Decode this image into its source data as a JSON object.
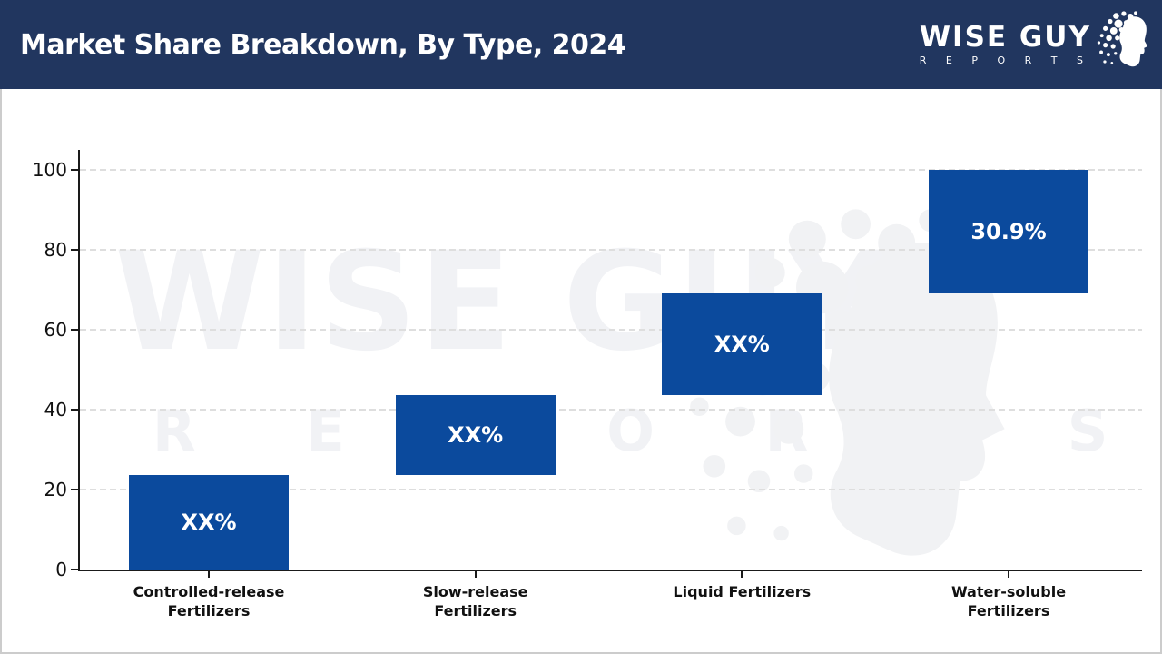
{
  "header": {
    "title": "Market Share Breakdown, By Type, 2024",
    "logo": {
      "line1": "WISE GUY",
      "line2": "R E P O R T S",
      "face_icon": "wiseguy-face"
    }
  },
  "watermark": {
    "line1": "WISE GUY",
    "line2": "R E P O R T S"
  },
  "colors": {
    "header_bg": "#21365f",
    "bar_blue": "#0b4a9d",
    "gridline": "#dedede",
    "axis": "#1a1a1a",
    "watermark": "#f1f2f4",
    "page_border": "#cccccc",
    "bar_label_text": "#ffffff",
    "tick_label_text": "#111111"
  },
  "chart_data": {
    "type": "bar",
    "subtype": "waterfall-floating-bars",
    "title": "Market Share Breakdown, By Type, 2024",
    "categories": [
      "Controlled-release Fertilizers",
      "Slow-release Fertilizers",
      "Liquid Fertilizers",
      "Water-soluble Fertilizers"
    ],
    "category_lines": [
      [
        "Controlled-release",
        "Fertilizers"
      ],
      [
        "Slow-release",
        "Fertilizers"
      ],
      [
        "Liquid Fertilizers"
      ],
      [
        "Water-soluble",
        "Fertilizers"
      ]
    ],
    "segments": [
      {
        "category": "Controlled-release Fertilizers",
        "start": 0,
        "end": 23.6,
        "value": 23.6,
        "label": "XX%"
      },
      {
        "category": "Slow-release Fertilizers",
        "start": 23.6,
        "end": 43.6,
        "value": 20.0,
        "label": "XX%"
      },
      {
        "category": "Liquid Fertilizers",
        "start": 43.6,
        "end": 69.1,
        "value": 25.5,
        "label": "XX%"
      },
      {
        "category": "Water-soluble Fertilizers",
        "start": 69.1,
        "end": 100,
        "value": 30.9,
        "label": "30.9%"
      }
    ],
    "xlabel": "",
    "ylabel": "",
    "ylim": [
      0,
      100
    ],
    "yticks": [
      0,
      20,
      40,
      60,
      80,
      100
    ],
    "grid": "horizontal dashed",
    "legend": "none",
    "bar_color": "#0b4a9d"
  }
}
